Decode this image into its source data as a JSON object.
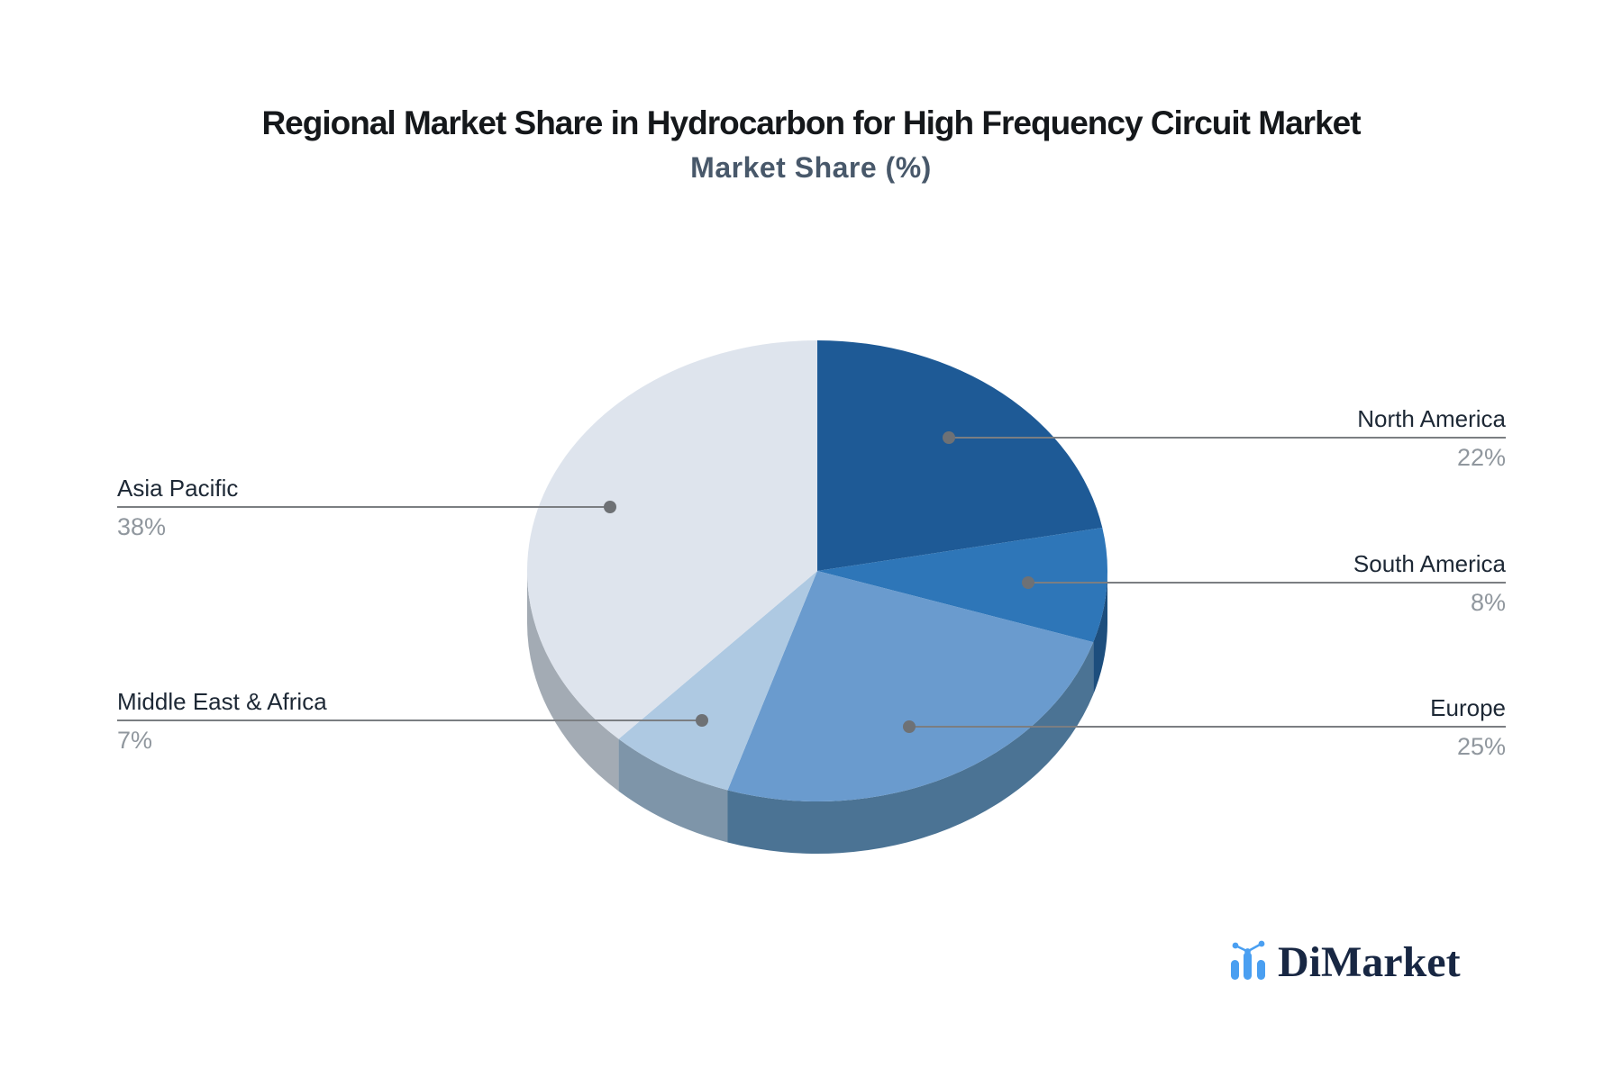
{
  "header": {
    "title": "Regional Market Share in Hydrocarbon for High Frequency Circuit Market",
    "subtitle": "Market Share (%)"
  },
  "chart_data": {
    "type": "pie",
    "style": "3d",
    "title": "Regional Market Share in Hydrocarbon for High Frequency Circuit Market",
    "subtitle": "Market Share (%)",
    "unit": "%",
    "start_angle_deg": 0,
    "direction": "clockwise",
    "legend_position": "callout-labels",
    "slices": [
      {
        "label": "North America",
        "value": 22,
        "pct_label": "22%",
        "color": "#1e5a96",
        "side_color": "#174672"
      },
      {
        "label": "South America",
        "value": 8,
        "pct_label": "8%",
        "color": "#2e76b8",
        "side_color": "#1d4e7d"
      },
      {
        "label": "Europe",
        "value": 25,
        "pct_label": "25%",
        "color": "#6a9bce",
        "side_color": "#4b7394"
      },
      {
        "label": "Middle East & Africa",
        "value": 7,
        "pct_label": "7%",
        "color": "#aec9e2",
        "side_color": "#7e95a9"
      },
      {
        "label": "Asia Pacific",
        "value": 38,
        "pct_label": "38%",
        "color": "#dee4ed",
        "side_color": "#a3abb4"
      }
    ],
    "colors": {
      "leader_line": "#7b7e82",
      "label_text": "#1d2835",
      "value_text": "#90979e"
    }
  },
  "brand": {
    "name": "DiMarket",
    "icon": "bar-chart-logo-icon",
    "icon_color": "#4a9ff1",
    "text_color": "#182743"
  }
}
